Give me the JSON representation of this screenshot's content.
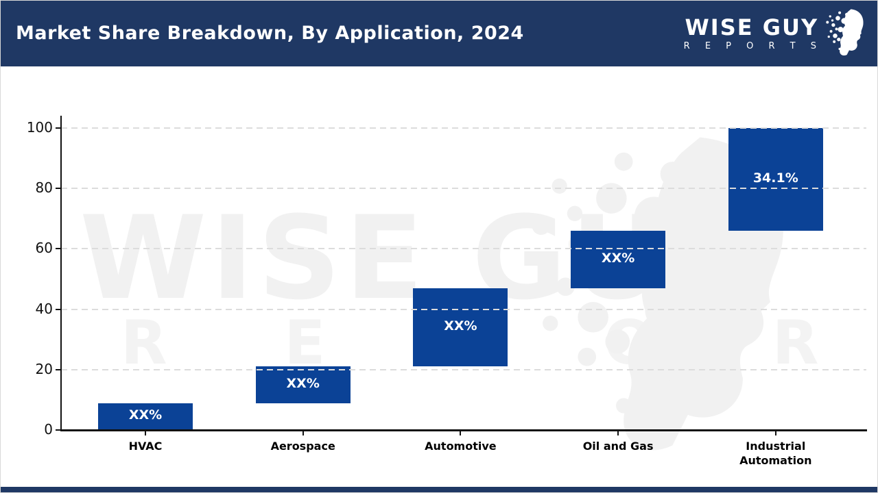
{
  "header": {
    "title": "Market Share Breakdown, By Application, 2024",
    "logo": {
      "line1": "WISE GUY",
      "line2": "R E P O R T S"
    }
  },
  "watermark": {
    "line1": "WISE GUY",
    "line2": "R E P O R T S"
  },
  "colors": {
    "header_bg": "#1f3864",
    "bar": "#0b4296",
    "gridline": "#dcdcdc",
    "watermark": "#f1f1f1"
  },
  "chart_data": {
    "type": "bar",
    "subtype": "waterfall",
    "title": "Market Share Breakdown, By Application, 2024",
    "categories": [
      "HVAC",
      "Aerospace",
      "Automotive",
      "Oil and Gas",
      "Industrial Automation"
    ],
    "segments": [
      {
        "category": "HVAC",
        "base": 0,
        "top": 8.9,
        "label": "XX%"
      },
      {
        "category": "Aerospace",
        "base": 8.9,
        "top": 21.1,
        "label": "XX%"
      },
      {
        "category": "Automotive",
        "base": 21.1,
        "top": 46.9,
        "label": "XX%"
      },
      {
        "category": "Oil and Gas",
        "base": 46.9,
        "top": 65.9,
        "label": "XX%"
      },
      {
        "category": "Industrial Automation",
        "base": 65.9,
        "top": 100,
        "label": "34.1%"
      }
    ],
    "yticks": [
      0,
      20,
      40,
      60,
      80,
      100
    ],
    "ylim": [
      0,
      100
    ],
    "xlabel": "",
    "ylabel": "",
    "grid": "horizontal-dashed",
    "legend": "none"
  }
}
